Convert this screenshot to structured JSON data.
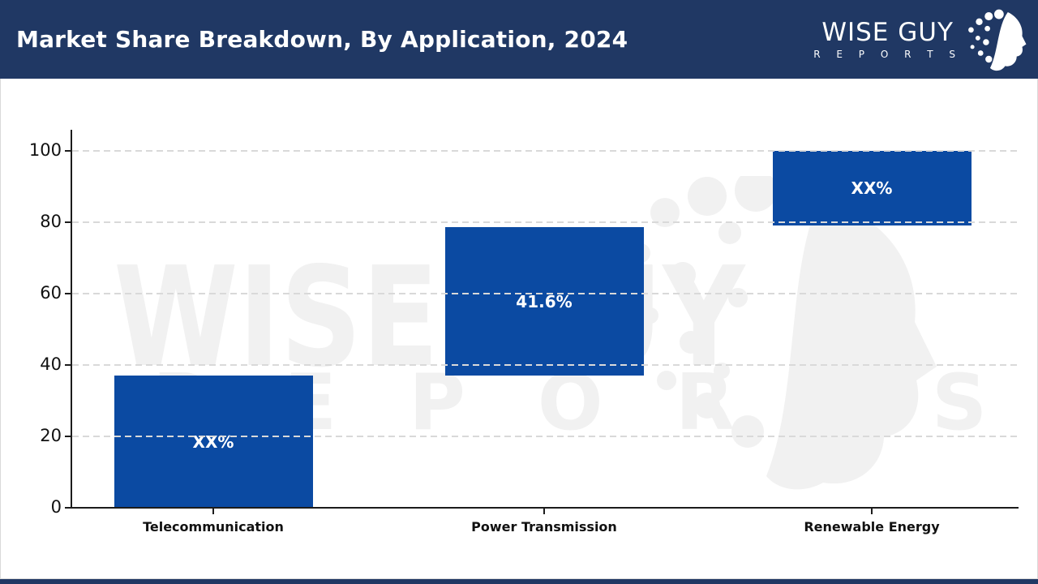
{
  "header": {
    "title": "Market Share Breakdown, By Application, 2024",
    "brand": {
      "line1": "WISE GUY",
      "line2": "R E P O R T S"
    }
  },
  "watermark": {
    "line1": "WISE GUY",
    "line2": "R E P O R T S"
  },
  "colors": {
    "header_bg": "#203864",
    "bar": "#0B4AA2",
    "grid": "#d9d9d9",
    "axis": "#1c1c1c",
    "watermark": "#f1f1f1"
  },
  "chart_data": {
    "type": "bar",
    "subtype": "waterfall",
    "title": "Market Share Breakdown, By Application, 2024",
    "categories": [
      "Telecommunication",
      "Power Transmission",
      "Renewable Energy"
    ],
    "segments": [
      {
        "category": "Telecommunication",
        "start": 0,
        "end": 37,
        "label": "XX%"
      },
      {
        "category": "Power Transmission",
        "start": 37,
        "end": 78.6,
        "label": "41.6%",
        "value": 41.6
      },
      {
        "category": "Renewable Energy",
        "start": 79,
        "end": 100,
        "label": "XX%"
      }
    ],
    "yticks": [
      0,
      20,
      40,
      60,
      80,
      100
    ],
    "ylim": [
      0,
      106
    ],
    "grid": "dashed-horizontal",
    "gridlines_over_bars": true,
    "legend": "none",
    "xlabel": "",
    "ylabel": ""
  }
}
